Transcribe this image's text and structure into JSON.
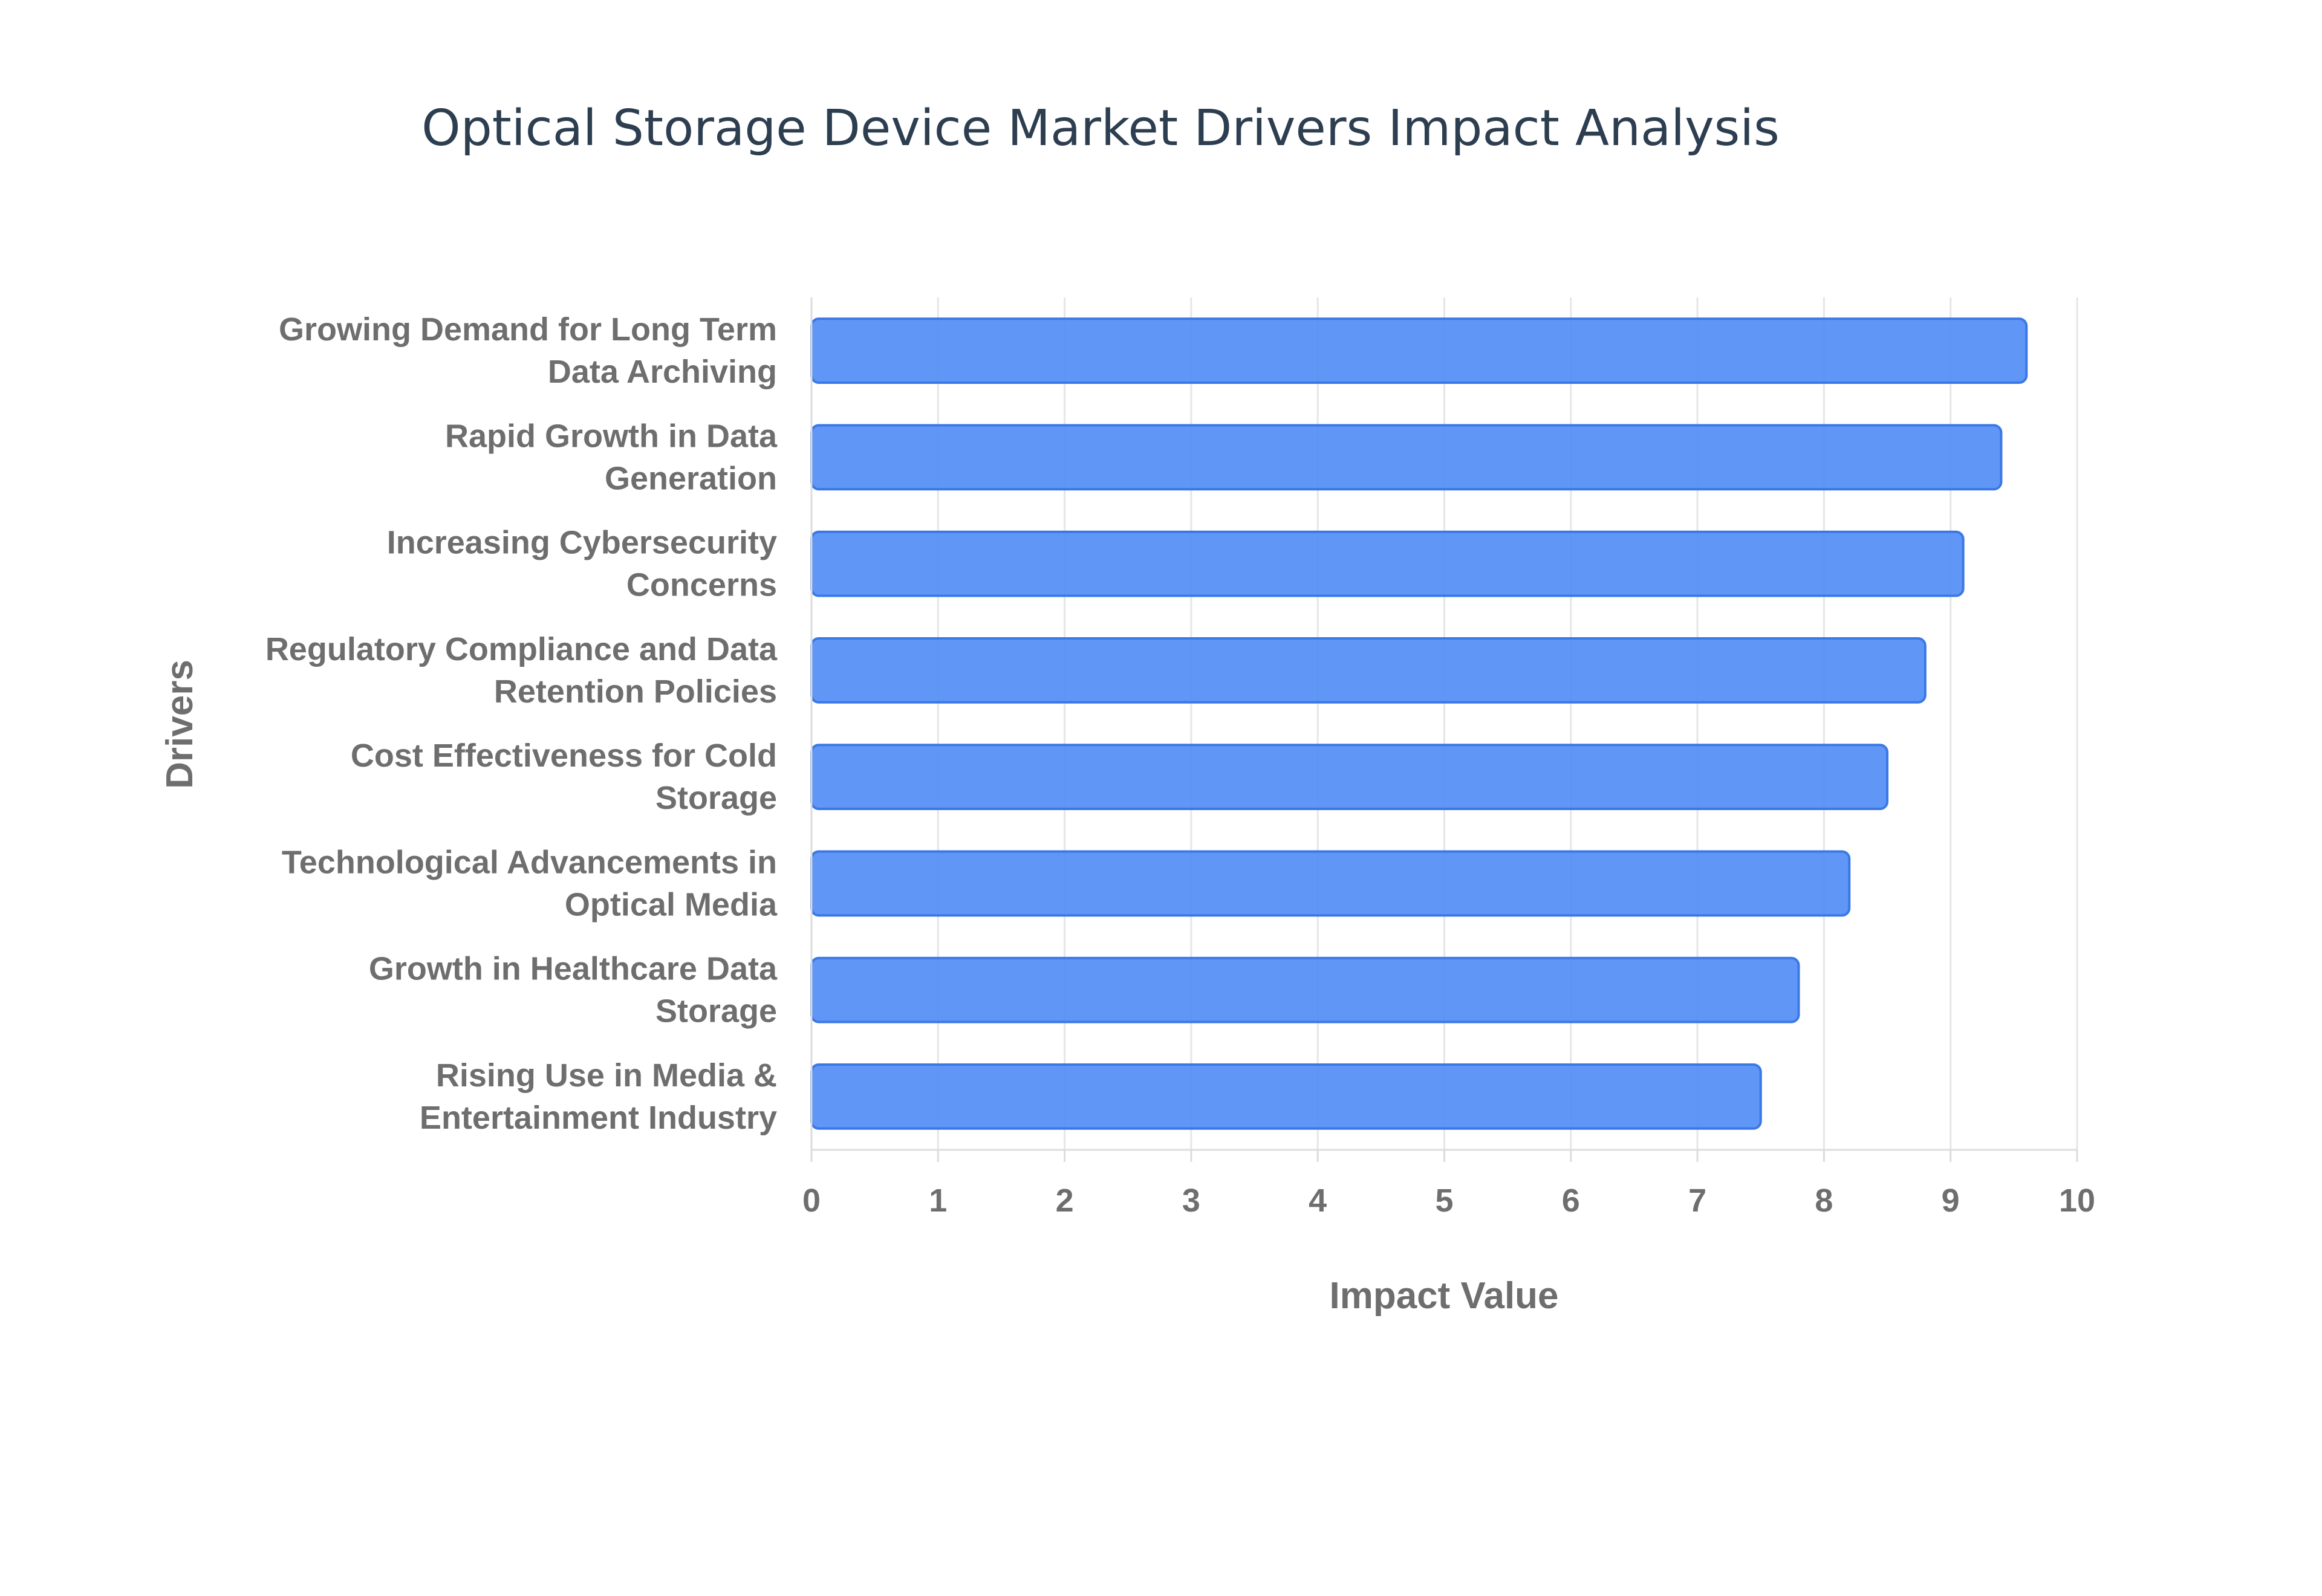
{
  "chart_data": {
    "type": "bar",
    "orientation": "horizontal",
    "title": "Optical Storage Device Market Drivers Impact Analysis",
    "xlabel": "Impact Value",
    "ylabel": "Drivers",
    "xlim": [
      0,
      10
    ],
    "x_ticks": [
      "0",
      "1",
      "2",
      "3",
      "4",
      "5",
      "6",
      "7",
      "8",
      "9",
      "10"
    ],
    "grid": true,
    "legend": "none",
    "bar_color": "#4f8cf5",
    "bar_edge_color": "#3b78e7",
    "categories": [
      [
        "Growing Demand for Long Term",
        "Data Archiving"
      ],
      [
        "Rapid Growth in Data",
        "Generation"
      ],
      [
        "Increasing Cybersecurity",
        "Concerns"
      ],
      [
        "Regulatory Compliance and Data",
        "Retention Policies"
      ],
      [
        "Cost Effectiveness for Cold",
        "Storage"
      ],
      [
        "Technological Advancements in",
        "Optical Media"
      ],
      [
        "Growth in Healthcare Data",
        "Storage"
      ],
      [
        "Rising Use in Media &",
        "Entertainment Industry"
      ]
    ],
    "values": [
      9.6,
      9.4,
      9.1,
      8.8,
      8.5,
      8.2,
      7.8,
      7.5
    ]
  }
}
